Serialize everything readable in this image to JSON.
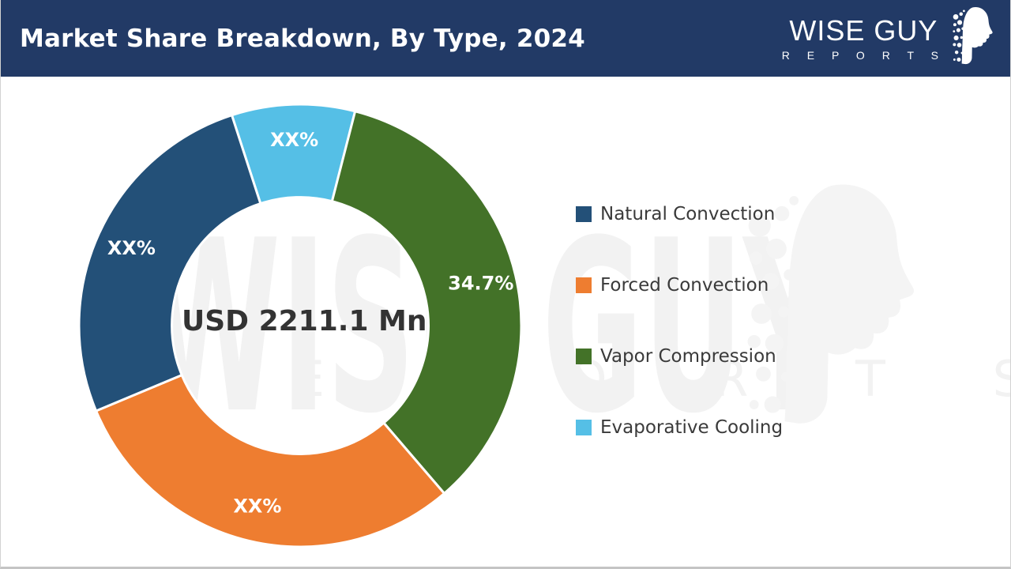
{
  "header": {
    "title": "Market Share Breakdown, By Type, 2024",
    "logo": {
      "name": "WISE GUY",
      "subname": "R E P O R T S"
    }
  },
  "watermark": {
    "line1": "WISE GUY",
    "line2": "R E P O R T S"
  },
  "colors": {
    "header_bg": "#223a66",
    "navy": "#235078",
    "orange": "#ee7d30",
    "green": "#437228",
    "light_blue": "#55bfe6",
    "center_text": "#333333",
    "legend_text": "#3a3a3a",
    "watermark": "#f2f2f2",
    "watermark_face": "#f4f4f4"
  },
  "chart_data": {
    "type": "pie",
    "subtype": "donut",
    "title": "Market Share Breakdown, By Type, 2024",
    "center_label": "USD 2211.1 Mn",
    "legend_position": "right",
    "donut_hole_ratio": 0.58,
    "start_angle_deg": -18,
    "clockwise": true,
    "segments": [
      {
        "label": "Natural Convection",
        "display_value": "XX%",
        "arc_pct": 26.3,
        "color": "#235078"
      },
      {
        "label": "Forced Convection",
        "display_value": "XX%",
        "arc_pct": 30.0,
        "color": "#ee7d30"
      },
      {
        "label": "Vapor Compression",
        "display_value": "34.7%",
        "arc_pct": 34.7,
        "color": "#437228"
      },
      {
        "label": "Evaporative Cooling",
        "display_value": "XX%",
        "arc_pct": 9.0,
        "color": "#55bfe6"
      }
    ],
    "draw_order_clockwise_from_top": [
      3,
      2,
      1,
      0
    ]
  }
}
